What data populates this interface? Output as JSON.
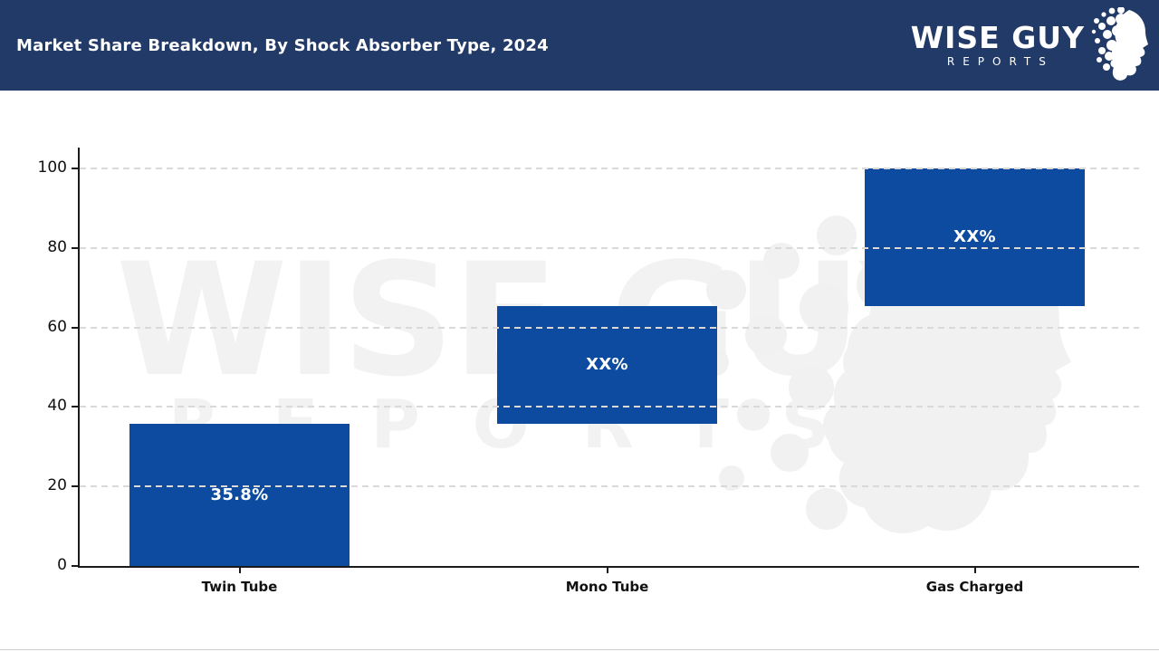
{
  "header": {
    "title": "Market Share Breakdown, By Shock Absorber Type, 2024",
    "logo": {
      "line1": "WISE GUY",
      "line2": "REPORTS"
    }
  },
  "watermark": {
    "line1": "WISE GUY",
    "line2": "REPORTS"
  },
  "chart_data": {
    "type": "bar",
    "subtype": "waterfall",
    "title": "Market Share Breakdown, By Shock Absorber Type, 2024",
    "categories": [
      "Twin Tube",
      "Mono Tube",
      "Gas Charged"
    ],
    "bars": [
      {
        "category": "Twin Tube",
        "start": 0,
        "end": 35.8,
        "label": "35.8%"
      },
      {
        "category": "Mono Tube",
        "start": 35.8,
        "end": 65.4,
        "label": "XX%"
      },
      {
        "category": "Gas Charged",
        "start": 65.4,
        "end": 100,
        "label": "XX%"
      }
    ],
    "xlabel": "",
    "ylabel": "",
    "ylim": [
      0,
      100
    ],
    "yticks": [
      0,
      20,
      40,
      60,
      80,
      100
    ],
    "grid": "horizontal-dashed",
    "legend": "none",
    "bar_color": "#0c4ba0",
    "bar_label_color": "#ffffff"
  },
  "colors": {
    "header_bg": "#223a67",
    "bar": "#0c4ba0",
    "grid": "#d9d9d9",
    "axis": "#1a1a1a",
    "watermark": "#f2f2f2",
    "tick_label": "#111111"
  }
}
